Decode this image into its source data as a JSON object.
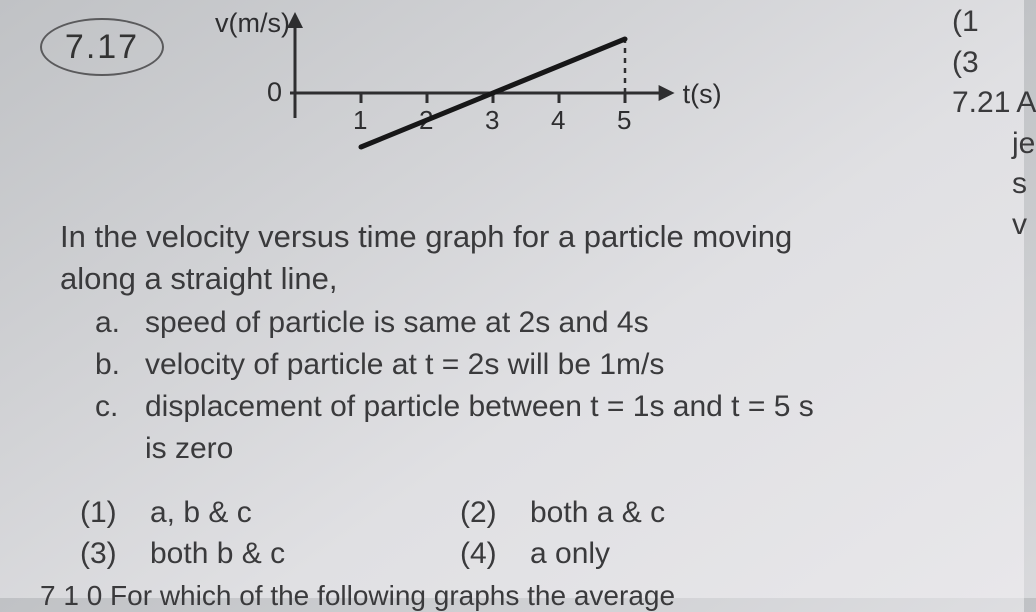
{
  "question_number": "7.17",
  "right_fragment": {
    "l1": "(1",
    "l2": "(3",
    "qn": "7.21",
    "l3": "A",
    "l4": "je",
    "l5": "s",
    "l6": "v"
  },
  "graph": {
    "y_label": "v(m/s)",
    "x_label": "t(s)",
    "origin_label": "0",
    "x_ticks": [
      "1",
      "2",
      "3",
      "4",
      "5"
    ],
    "axis_color": "#2e2e30",
    "line_color": "#171718",
    "dash_color": "#2e2e30",
    "tick_font_size": 26,
    "label_font_size": 27,
    "line_start": {
      "t": 1,
      "v": -2
    },
    "line_end": {
      "t": 5,
      "v": 2
    }
  },
  "question": "In the velocity versus time graph for a particle moving along a straight line,",
  "statements": [
    {
      "label": "a.",
      "text": "speed of particle is same at 2s and 4s"
    },
    {
      "label": "b.",
      "text": "velocity of particle at t = 2s will be 1m/s"
    },
    {
      "label": "c.",
      "text": "displacement of particle between t = 1s and t = 5 s is zero"
    }
  ],
  "options": [
    {
      "num": "(1)",
      "text": "a, b & c"
    },
    {
      "num": "(2)",
      "text": "both a & c"
    },
    {
      "num": "(3)",
      "text": "both b & c"
    },
    {
      "num": "(4)",
      "text": "a only"
    }
  ],
  "cutoff_text": "7 1 0 For which of the following graphs the average"
}
